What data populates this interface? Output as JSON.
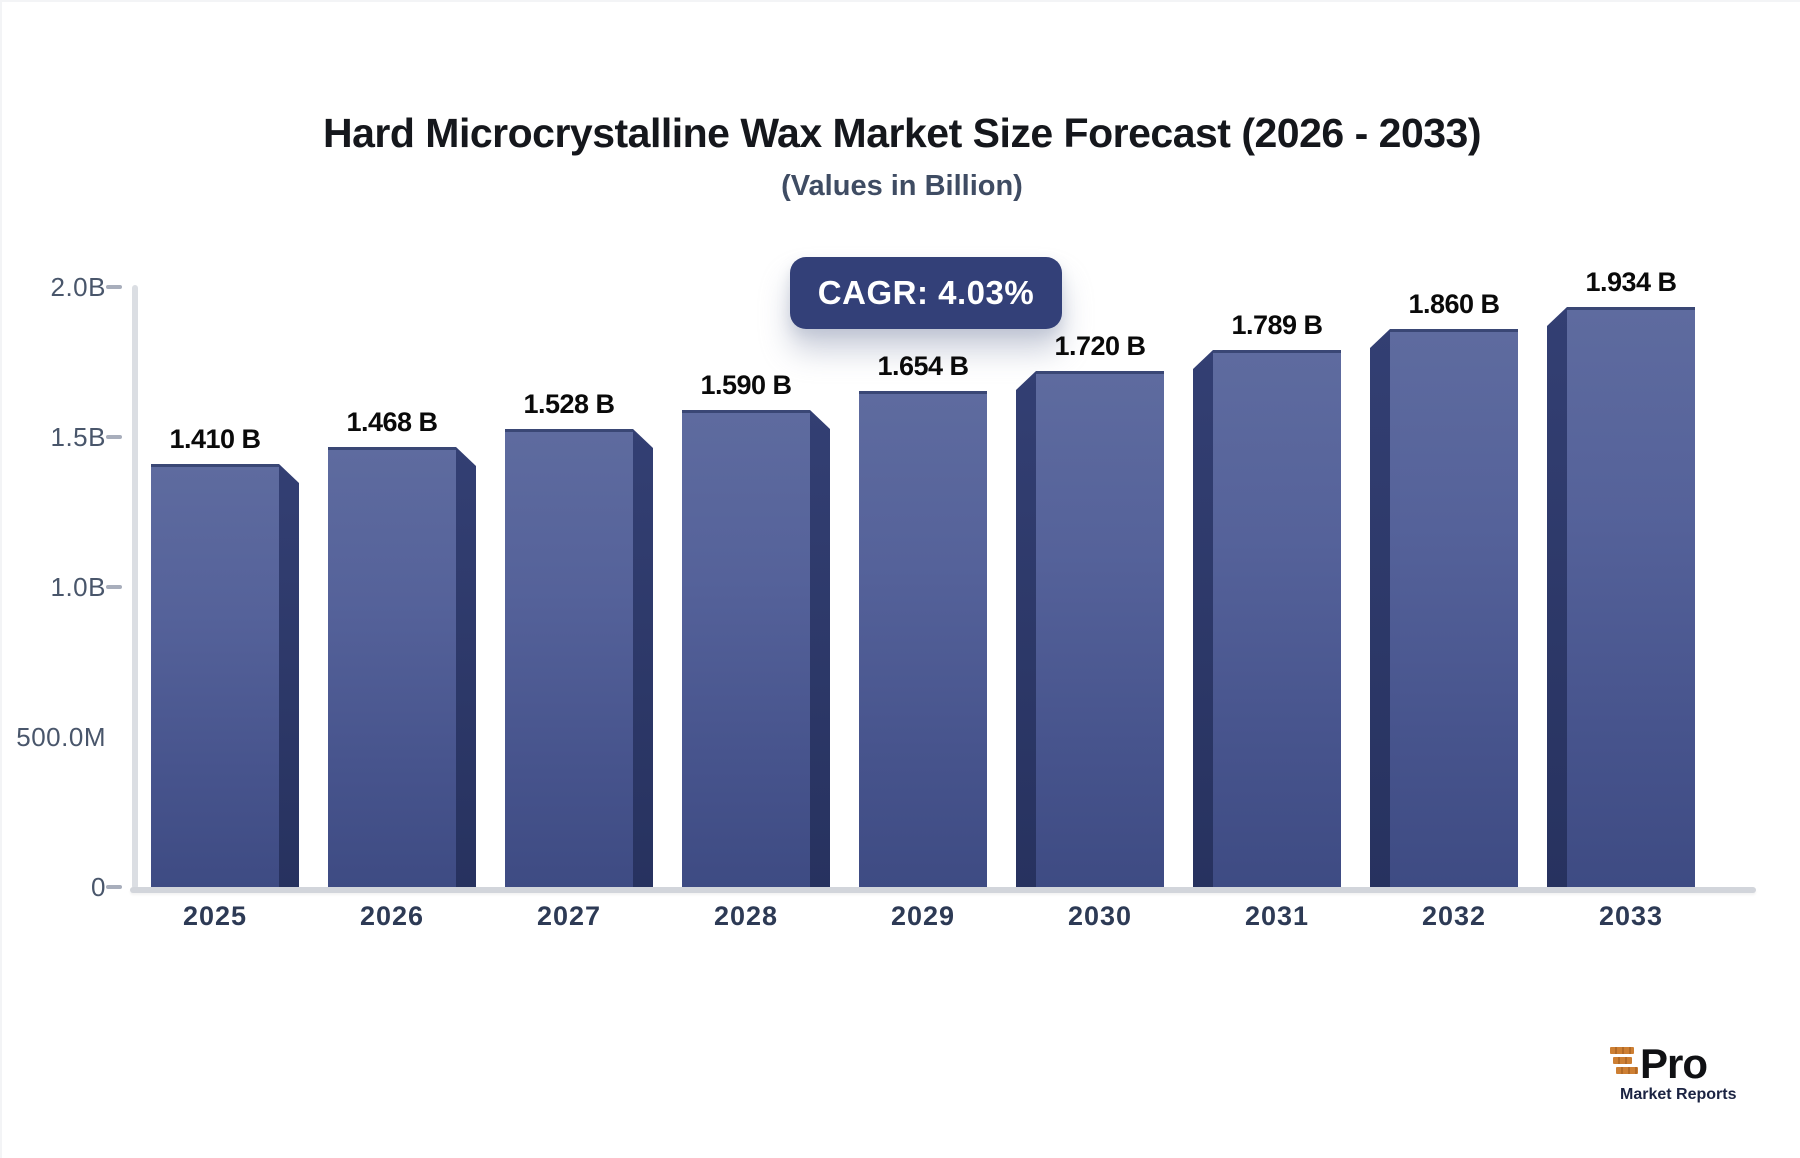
{
  "title": "Hard Microcrystalline Wax Market Size Forecast (2026 - 2033)",
  "subtitle": "(Values in Billion)",
  "cagr_badge": "CAGR: 4.03%",
  "chart_data": {
    "type": "bar",
    "title": "Hard Microcrystalline Wax Market Size Forecast (2026 - 2033)",
    "subtitle": "(Values in Billion)",
    "unit": "Billion",
    "cagr": "4.03%",
    "categories": [
      "2025",
      "2026",
      "2027",
      "2028",
      "2029",
      "2030",
      "2031",
      "2032",
      "2033"
    ],
    "values": [
      1.41,
      1.468,
      1.528,
      1.59,
      1.654,
      1.72,
      1.789,
      1.86,
      1.934
    ],
    "value_labels": [
      "1.410 B",
      "1.468 B",
      "1.528 B",
      "1.590 B",
      "1.654 B",
      "1.720 B",
      "1.789 B",
      "1.860 B",
      "1.934 B"
    ],
    "yticks": [
      {
        "label": "2.0B",
        "value": 2.0,
        "tick": true
      },
      {
        "label": "1.5B",
        "value": 1.5,
        "tick": true
      },
      {
        "label": "1.0B",
        "value": 1.0,
        "tick": true
      },
      {
        "label": "500.0M",
        "value": 0.5,
        "tick": false
      },
      {
        "label": "0",
        "value": 0,
        "tick": true
      }
    ],
    "ylim": [
      0,
      2.0
    ],
    "grid": false,
    "legend": null,
    "bar_style": "3d-perspective-from-center"
  },
  "logo": {
    "text": "Pro",
    "subtext": "Market Reports"
  },
  "colors": {
    "bar_face_top": "#5e6b9f",
    "bar_face_bottom": "#3e4b83",
    "bar_side": "#2b3768",
    "badge_bg": "#334078",
    "axis_line": "#d7dade",
    "logo_orange": "#cd7f33"
  }
}
